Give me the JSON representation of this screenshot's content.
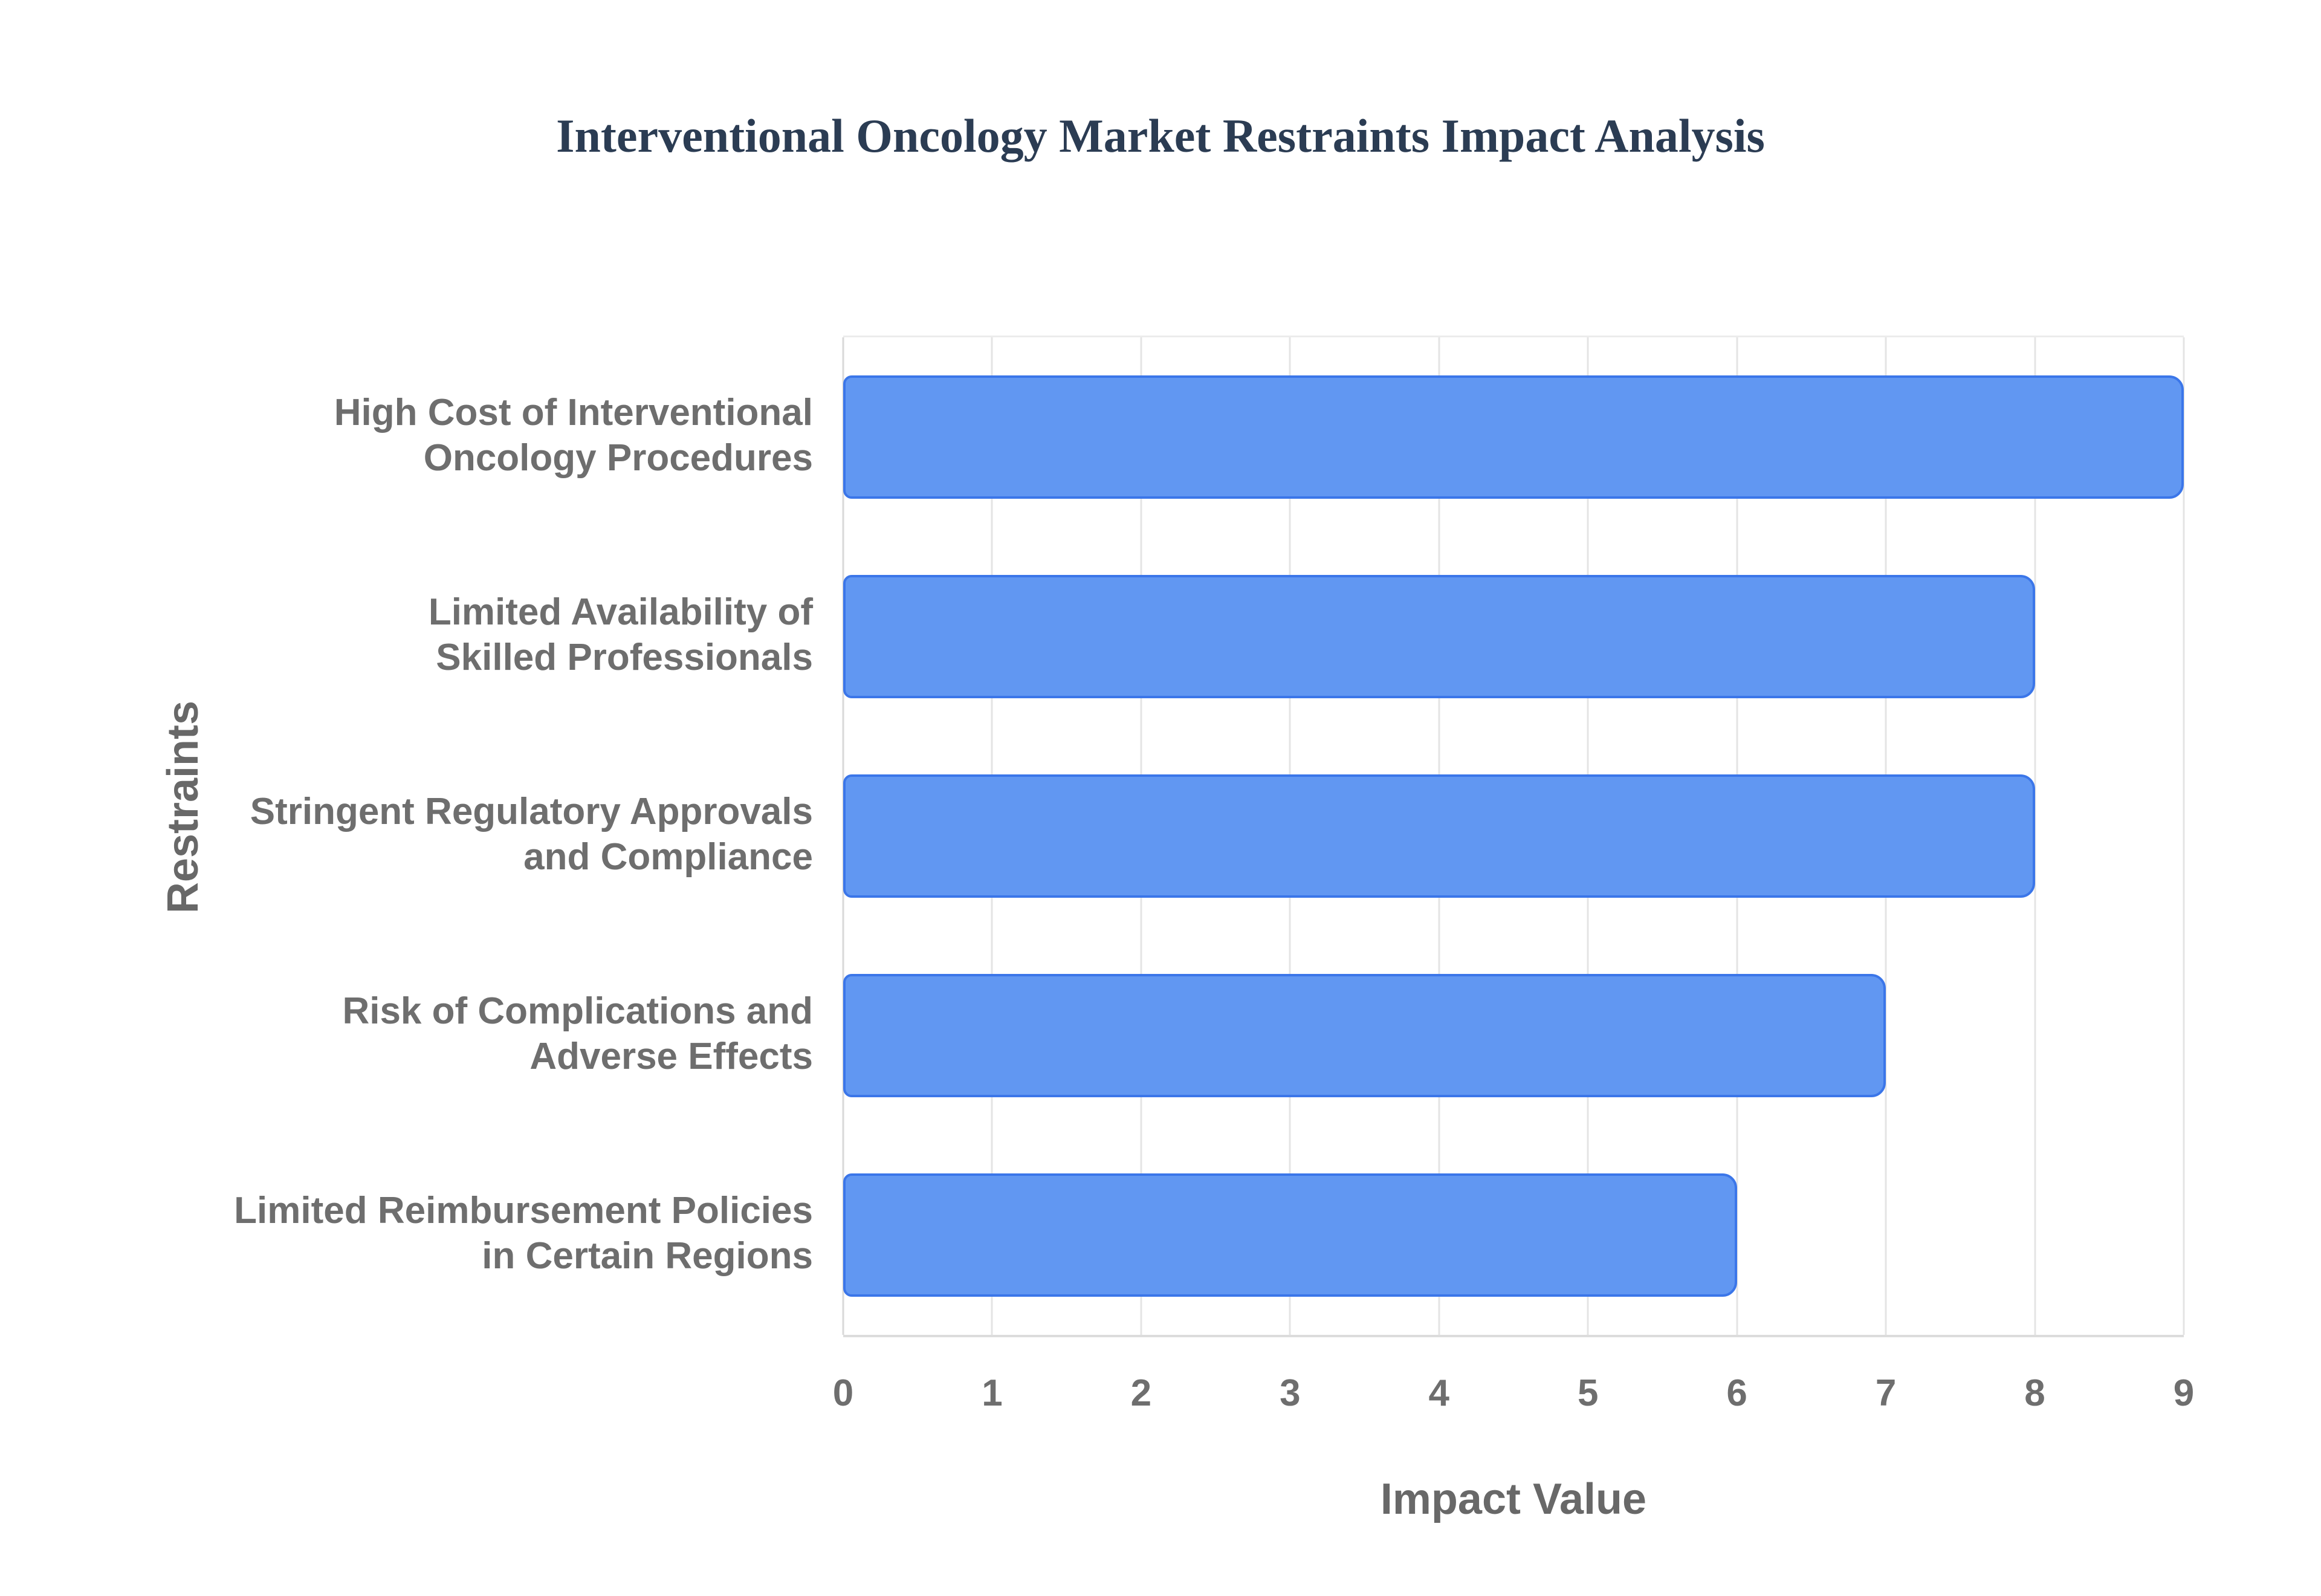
{
  "chart_data": {
    "type": "bar",
    "orientation": "horizontal",
    "title": "Interventional Oncology Market Restraints Impact Analysis",
    "xlabel": "Impact Value",
    "ylabel": "Restraints",
    "categories": [
      "High Cost of Interventional Oncology Procedures",
      "Limited Availability of Skilled Professionals",
      "Stringent Regulatory Approvals and Compliance",
      "Risk of Complications and Adverse Effects",
      "Limited Reimbursement Policies in Certain Regions"
    ],
    "category_lines": [
      [
        "High Cost of Interventional",
        "Oncology Procedures"
      ],
      [
        "Limited Availability of",
        "Skilled Professionals"
      ],
      [
        "Stringent Regulatory Approvals",
        "and Compliance"
      ],
      [
        "Risk of Complications and",
        "Adverse Effects"
      ],
      [
        "Limited Reimbursement Policies",
        "in Certain Regions"
      ]
    ],
    "values": [
      9,
      8,
      8,
      7,
      6
    ],
    "xlim": [
      0,
      9
    ],
    "xticks": [
      0,
      1,
      2,
      3,
      4,
      5,
      6,
      7,
      8,
      9
    ],
    "grid": "vertical",
    "legend": "none",
    "colors": {
      "bar_fill": "#6197F2",
      "bar_border": "#3B76E9",
      "title_text": "#2B3C53",
      "axis_text": "#6E6E6E",
      "gridline": "#E4E4E4"
    }
  }
}
